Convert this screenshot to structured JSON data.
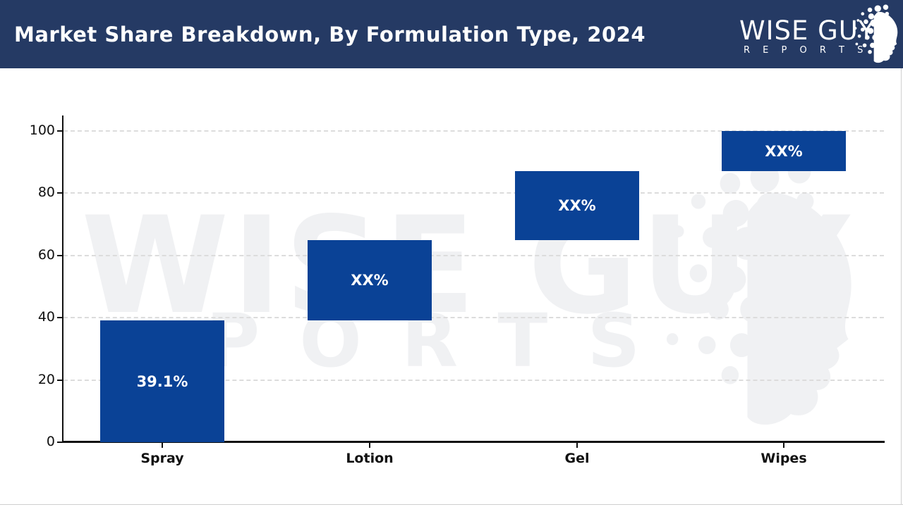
{
  "header": {
    "title": "Market Share Breakdown, By Formulation Type, 2024",
    "background_color": "#253a64",
    "logo": {
      "wordmark": "WISE GUY",
      "subtitle": "R E P O R T S"
    }
  },
  "watermark": {
    "line1": "WISE GUY",
    "line2": "P O R T S"
  },
  "chart_data": {
    "type": "bar",
    "subtype": "waterfall-stacked",
    "title": "Market Share Breakdown, By Formulation Type, 2024",
    "categories": [
      "Spray",
      "Lotion",
      "Gel",
      "Wipes"
    ],
    "series": [
      {
        "name": "Spray",
        "start": 0,
        "end": 39.1,
        "value": 39.1,
        "value_label": "39.1%"
      },
      {
        "name": "Lotion",
        "start": 39.1,
        "end": 65.0,
        "value": 25.9,
        "value_label": "XX%"
      },
      {
        "name": "Gel",
        "start": 65.0,
        "end": 87.0,
        "value": 22.0,
        "value_label": "XX%"
      },
      {
        "name": "Wipes",
        "start": 87.0,
        "end": 100.0,
        "value": 13.0,
        "value_label": "XX%"
      }
    ],
    "xlabel": "",
    "ylabel": "",
    "yticks": [
      0,
      20,
      40,
      60,
      80,
      100
    ],
    "ylim": [
      0,
      104.5
    ],
    "grid": "horizontal dashed",
    "legend": "none",
    "bar_color": "#0a4296",
    "bar_label_color": "#ffffff",
    "axis_color": "#111111"
  }
}
